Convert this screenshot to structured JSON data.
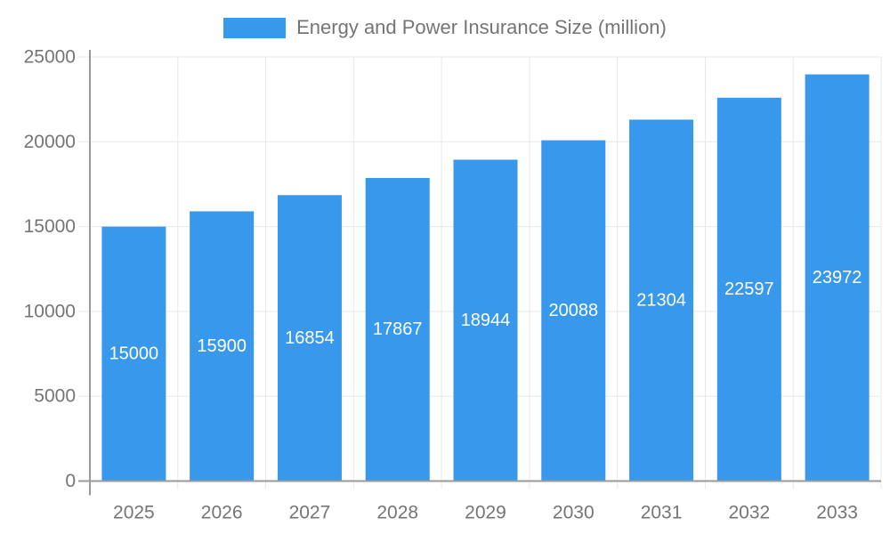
{
  "page": {
    "background": "#ffffff"
  },
  "legend": {
    "items": [
      {
        "label": "Energy and Power Insurance Size (million)",
        "color": "#3898ec"
      }
    ],
    "text_color": "#757575",
    "position": "top"
  },
  "chart_data": {
    "type": "bar",
    "title": "Energy and Power Insurance Size (million)",
    "categories": [
      "2025",
      "2026",
      "2027",
      "2028",
      "2029",
      "2030",
      "2031",
      "2032",
      "2033"
    ],
    "values": [
      15000,
      15900,
      16854,
      17867,
      18944,
      20088,
      21304,
      22597,
      23972
    ],
    "xlabel": "",
    "ylabel": "",
    "ylim": [
      0,
      25000
    ],
    "yticks": [
      0,
      5000,
      10000,
      15000,
      20000,
      25000
    ],
    "grid": true,
    "legend_position": "top",
    "value_label_position": "inside-center",
    "bar_color": "#3898ec",
    "value_label_color": "#ffffff",
    "axis_text_color": "#757575",
    "axis_line_color": "#9a9a9a",
    "grid_color": "#e8e8e8"
  }
}
